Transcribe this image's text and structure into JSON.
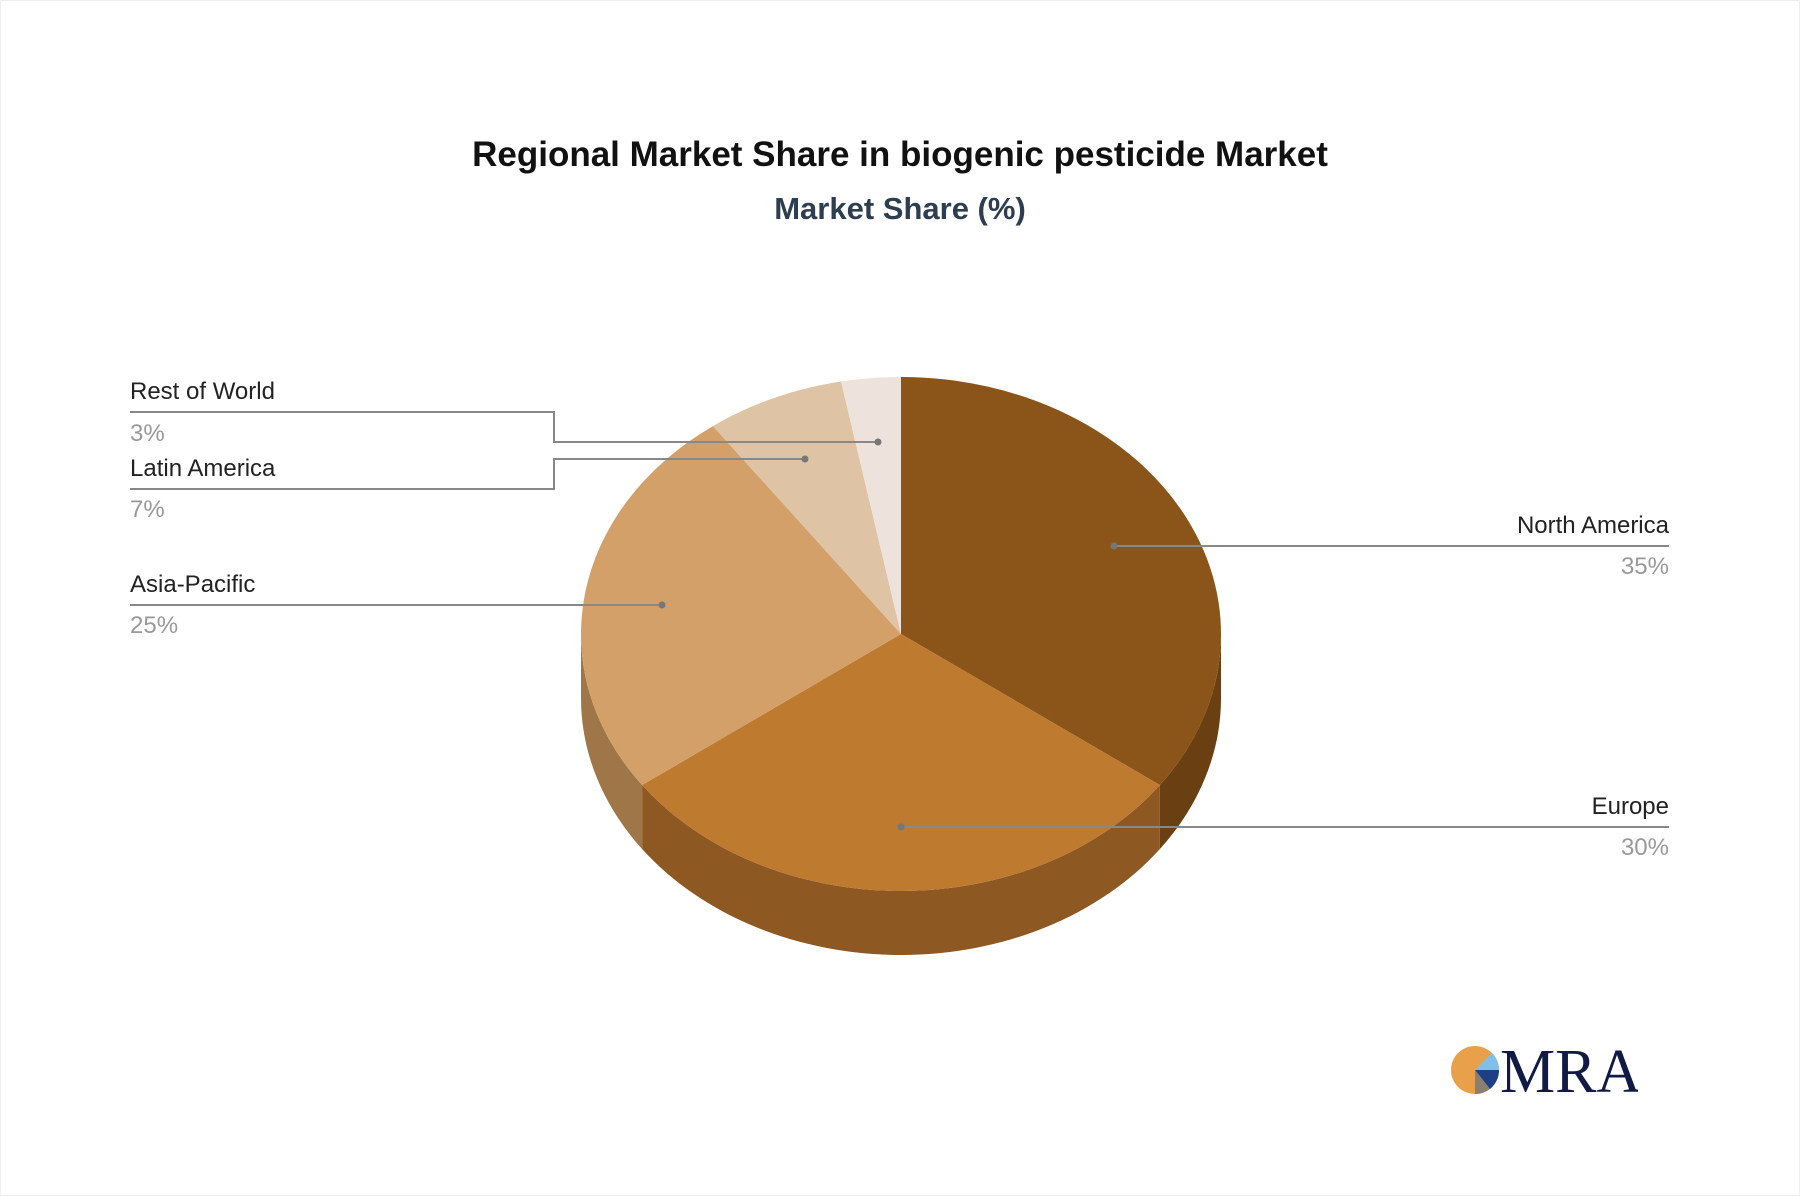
{
  "chart_data": {
    "type": "pie",
    "title": "Regional Market Share in biogenic pesticide Market",
    "subtitle": "Market Share (%)",
    "style": "3d",
    "slices": [
      {
        "label": "North America",
        "value": 35,
        "display": "35%",
        "color": "#8B5519",
        "side_color": "#6A3F12"
      },
      {
        "label": "Europe",
        "value": 30,
        "display": "30%",
        "color": "#BE7A2F",
        "side_color": "#8E5822"
      },
      {
        "label": "Asia-Pacific",
        "value": 25,
        "display": "25%",
        "color": "#D2A068",
        "side_color": "#9E7648"
      },
      {
        "label": "Latin America",
        "value": 7,
        "display": "7%",
        "color": "#DEC3A5",
        "side_color": "#A89074"
      },
      {
        "label": "Rest of World",
        "value": 3,
        "display": "3%",
        "color": "#EEE3DC",
        "side_color": "#B8ABA2"
      }
    ]
  },
  "logo": {
    "text": "MRA"
  }
}
